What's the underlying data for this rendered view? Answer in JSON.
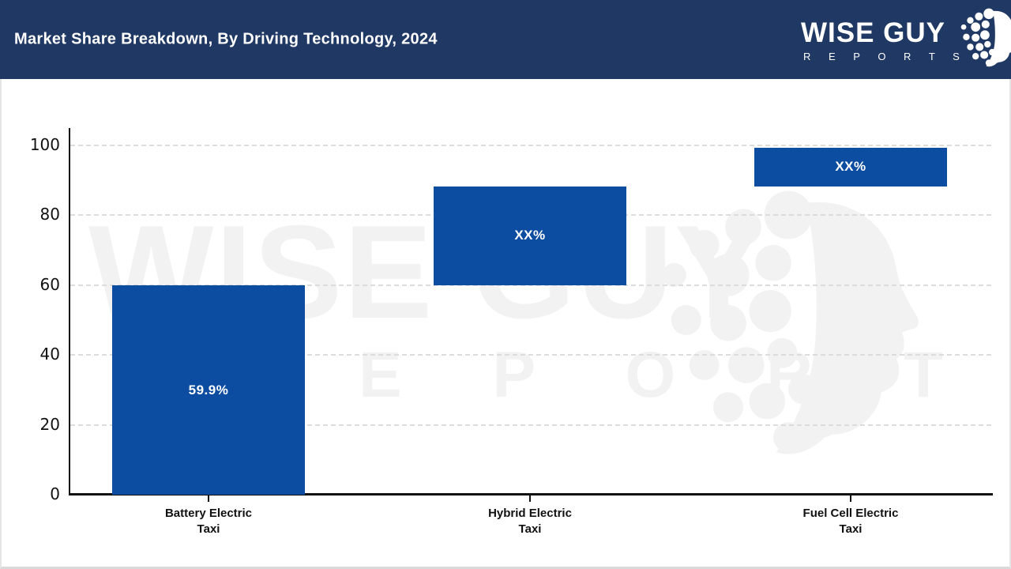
{
  "header": {
    "title": "Market Share Breakdown, By Driving Technology, 2024",
    "logo": {
      "line1": "WISE GUY",
      "line2": "R E P O R T S"
    }
  },
  "watermark": {
    "line1": "WISE GUY",
    "line2": "R E P O R T S"
  },
  "colors": {
    "header_bg": "#1f3864",
    "bar": "#0d4da1",
    "axis": "#111111",
    "grid": "#dcdcdc",
    "value_label": "#ffffff",
    "watermark": "#f2f2f2",
    "page_bg": "#ffffff"
  },
  "chart_data": {
    "type": "bar",
    "subtype": "stacked-waterfall",
    "title": "Market Share Breakdown, By Driving Technology, 2024",
    "categories": [
      {
        "line1": "Battery Electric",
        "line2": "Taxi"
      },
      {
        "line1": "Hybrid Electric",
        "line2": "Taxi"
      },
      {
        "line1": "Fuel Cell Electric",
        "line2": "Taxi"
      }
    ],
    "segments": [
      {
        "category": "Battery Electric Taxi",
        "start": 0,
        "end": 59.9,
        "label": "59.9%"
      },
      {
        "category": "Hybrid Electric Taxi",
        "start": 59.9,
        "end": 88.3,
        "label": "XX%"
      },
      {
        "category": "Fuel Cell Electric Taxi",
        "start": 88.3,
        "end": 99.4,
        "label": "XX%"
      }
    ],
    "yticks": [
      0,
      20,
      40,
      60,
      80,
      100
    ],
    "ylim": [
      0,
      105
    ],
    "xlabel": "",
    "ylabel": "",
    "grid": "horizontal-dashed",
    "legend": "none",
    "bar_color": "#0d4da1"
  }
}
